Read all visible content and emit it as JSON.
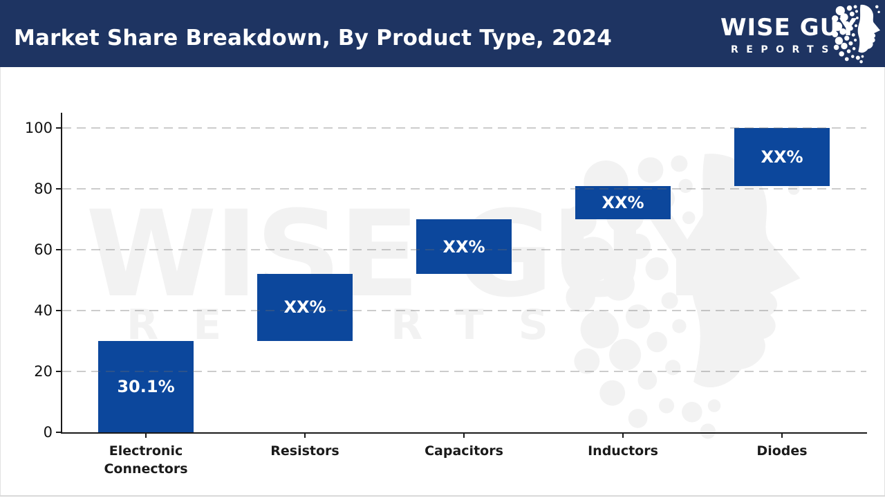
{
  "header": {
    "title": "Market Share Breakdown, By Product Type, 2024",
    "logo": {
      "line1": "WISE GUY",
      "line2": "REPORTS"
    }
  },
  "watermark": {
    "line1": "WISE GUY",
    "line2": "REPORTS"
  },
  "chart_data": {
    "type": "bar",
    "subtype": "floating-waterfall",
    "title": "Market Share Breakdown, By Product Type, 2024",
    "categories": [
      "Electronic Connectors",
      "Resistors",
      "Capacitors",
      "Inductors",
      "Diodes"
    ],
    "series": [
      {
        "name": "Market share (%)",
        "segments": [
          {
            "category": "Electronic Connectors",
            "start": 0,
            "end": 30.1,
            "label": "30.1%"
          },
          {
            "category": "Resistors",
            "start": 30.1,
            "end": 52,
            "label": "XX%"
          },
          {
            "category": "Capacitors",
            "start": 52,
            "end": 70,
            "label": "XX%"
          },
          {
            "category": "Inductors",
            "start": 70,
            "end": 81,
            "label": "XX%"
          },
          {
            "category": "Diodes",
            "start": 81,
            "end": 100,
            "label": "XX%"
          }
        ]
      }
    ],
    "y_ticks": [
      0,
      20,
      40,
      60,
      80,
      100
    ],
    "ylim": [
      0,
      105
    ],
    "xlabel": "",
    "ylabel": "",
    "grid": "horizontal-dashed",
    "legend": "none",
    "bar_color": "#0c479c",
    "bar_label_color": "#ffffff",
    "header_color": "#1e3462",
    "watermark_color": "#f2f2f2"
  }
}
